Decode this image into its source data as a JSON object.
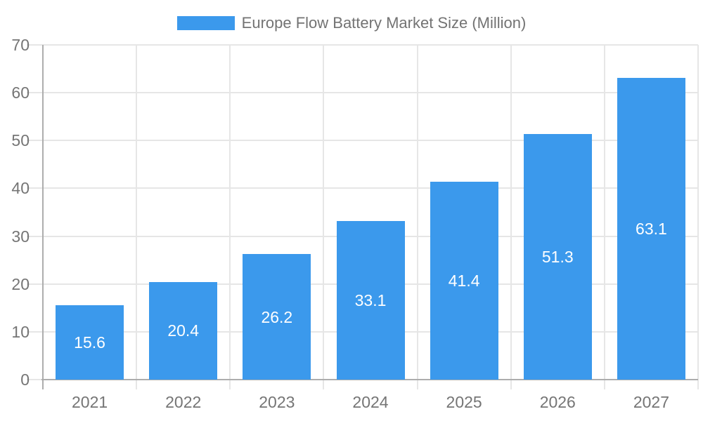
{
  "legend": {
    "label": "Europe Flow Battery Market Size (Million)"
  },
  "chart_data": {
    "type": "bar",
    "title": "Europe Flow Battery Market Size (Million)",
    "categories": [
      "2021",
      "2022",
      "2023",
      "2024",
      "2025",
      "2026",
      "2027"
    ],
    "values": [
      15.6,
      20.4,
      26.2,
      33.1,
      41.4,
      51.3,
      63.1
    ],
    "value_labels": [
      "15.6",
      "20.4",
      "26.2",
      "33.1",
      "41.4",
      "51.3",
      "63.1"
    ],
    "xlabel": "",
    "ylabel": "",
    "ylim": [
      0,
      70
    ],
    "yticks": [
      0,
      10,
      20,
      30,
      40,
      50,
      60,
      70
    ],
    "grid": "horizontal and vertical boundary gridlines",
    "legend_position": "top-center",
    "colors": {
      "bar": "#3B99EC",
      "grid": "#E6E6E6",
      "axis": "#ADADAD",
      "axis_label_text": "#757575",
      "legend_text": "#737373",
      "bar_label_text": "#FFFFFF",
      "background": "#FFFFFF"
    }
  }
}
